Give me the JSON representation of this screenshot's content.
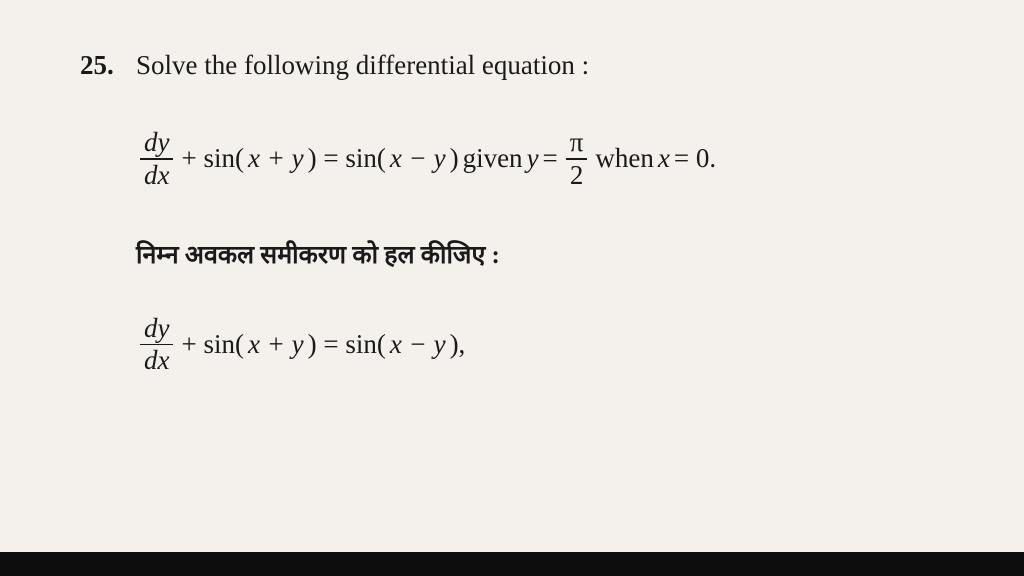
{
  "colors": {
    "page_bg": "#f4f0eb",
    "text": "#1a1a1a",
    "bottom_bar": "#0d0d0d"
  },
  "typography": {
    "body_fontsize_pt": 20,
    "hindi_fontsize_pt": 18,
    "family": "Times New Roman"
  },
  "question": {
    "number": "25.",
    "prompt_en": "Solve the following differential equation :",
    "prompt_hi": "निम्न अवकल समीकरण को हल कीजिए :",
    "equation": {
      "lhs_frac_num": "dy",
      "lhs_frac_den": "dx",
      "plus_term": "+ sin(",
      "arg1_inner": "x + y",
      "close_eq": ") = sin(",
      "arg2_inner": "x − y",
      "close2": "),",
      "close2_nocomma": ")",
      "given_word": " given ",
      "y_eq": "y",
      "equals": " = ",
      "pi_num": "π",
      "pi_den": "2",
      "when_word": " when ",
      "x_eq": "x",
      "zero_tail": " = 0."
    }
  }
}
